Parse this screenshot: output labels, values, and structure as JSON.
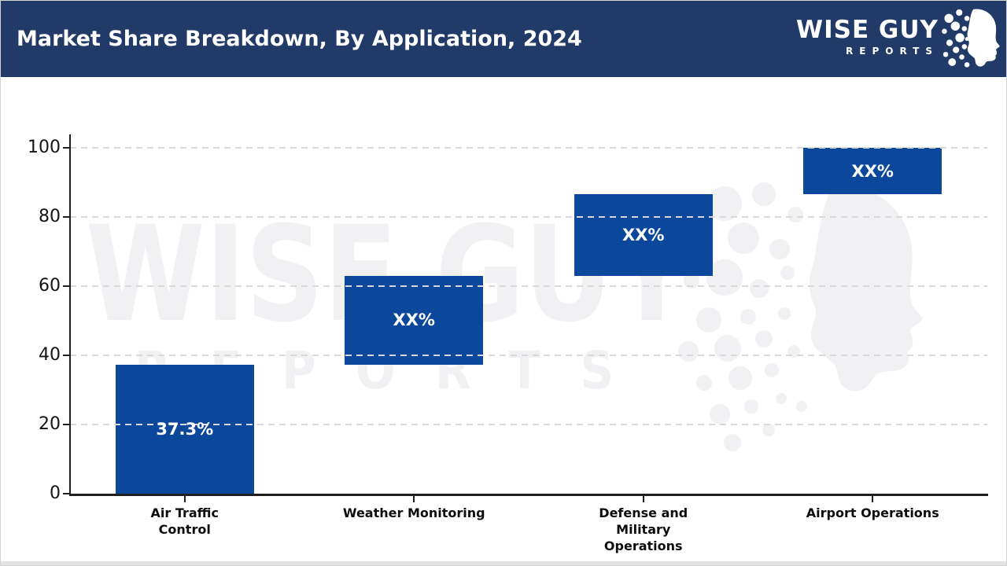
{
  "header": {
    "title": "Market Share Breakdown, By Application, 2024",
    "bg_color": "#213a67",
    "logo": {
      "line1": "WISE GUY",
      "line2": "REPORTS"
    }
  },
  "watermark": {
    "line1": "WISE GUY",
    "line2": "REPORTS"
  },
  "chart_data": {
    "type": "bar",
    "subtype": "waterfall-floating-bars",
    "title": "Market Share Breakdown, By Application, 2024",
    "categories": [
      "Air Traffic Control",
      "Weather Monitoring",
      "Defense and Military Operations",
      "Airport Operations"
    ],
    "category_lines": [
      [
        "Air Traffic",
        "Control"
      ],
      [
        "Weather Monitoring"
      ],
      [
        "Defense and",
        "Military",
        "Operations"
      ],
      [
        "Airport Operations"
      ]
    ],
    "segments": [
      {
        "category": "Air Traffic Control",
        "start": 0,
        "end": 37.3,
        "label": "37.3%"
      },
      {
        "category": "Weather Monitoring",
        "start": 37.3,
        "end": 63,
        "label": "XX%"
      },
      {
        "category": "Defense and Military Operations",
        "start": 63,
        "end": 86.5,
        "label": "XX%"
      },
      {
        "category": "Airport Operations",
        "start": 86.5,
        "end": 100,
        "label": "XX%"
      }
    ],
    "yticks": [
      0,
      20,
      40,
      60,
      80,
      100
    ],
    "ylim": [
      0,
      104
    ],
    "xlabel": "",
    "ylabel": "",
    "grid": "horizontal-dashed",
    "legend": "none",
    "bar_color": "#0b489c",
    "bar_label_color": "#ffffff",
    "grid_color": "#d9d9d9",
    "axis_color": "#1f1f1f"
  }
}
